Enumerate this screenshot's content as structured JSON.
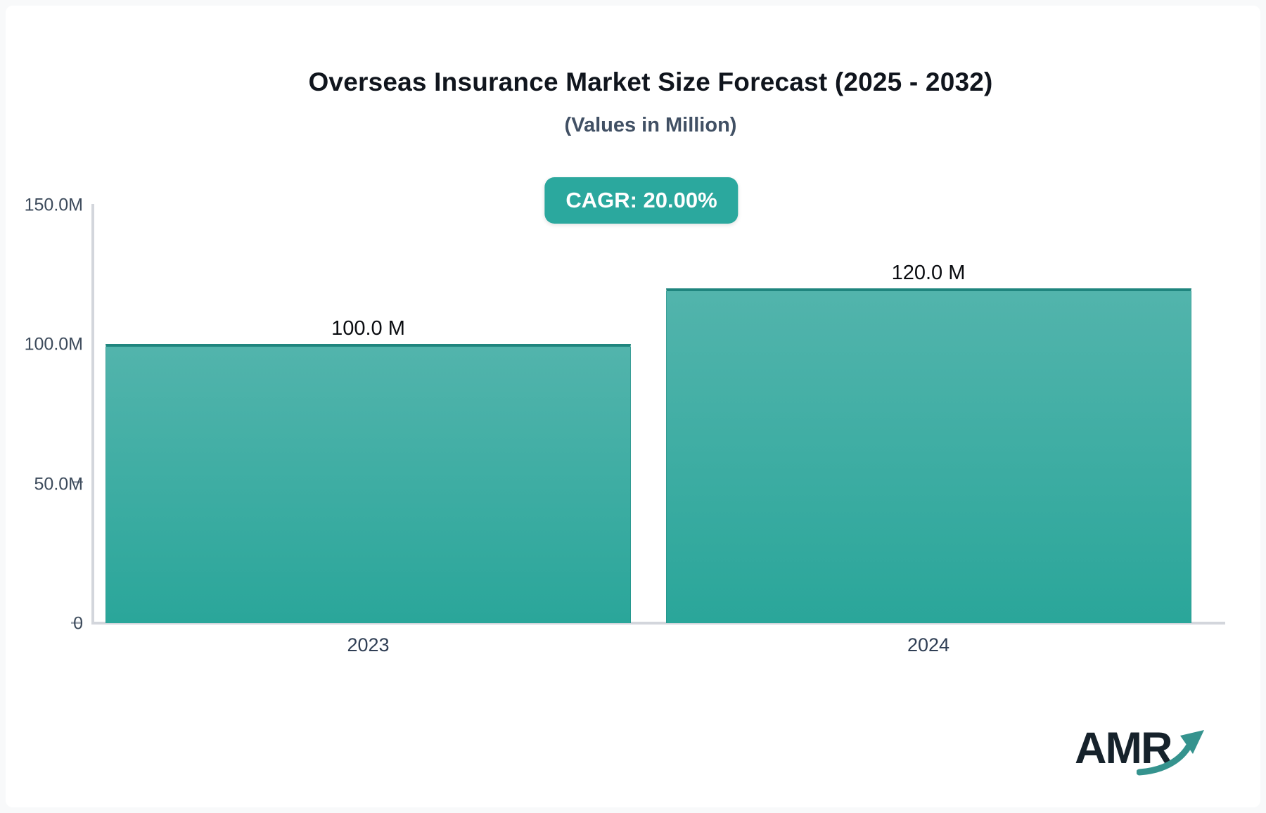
{
  "page": {
    "background": "#F8F9FA",
    "card_background": "#FFFFFF"
  },
  "chart_data": {
    "type": "bar",
    "title": "Overseas Insurance Market Size Forecast (2025 - 2032)",
    "subtitle": "(Values in Million)",
    "cagr_badge": "CAGR: 20.00%",
    "categories": [
      "2023",
      "2024"
    ],
    "values": [
      100.0,
      120.0
    ],
    "value_labels": [
      "100.0 M",
      "120.0 M"
    ],
    "unit": "Million",
    "ylim": [
      0,
      150
    ],
    "y_tick_values": [
      150,
      100,
      50,
      0
    ],
    "y_tick_labels": [
      "150.0M",
      "100.0M",
      "50.0M",
      "0"
    ],
    "grid": false,
    "legend": false,
    "colors": {
      "bar_gradient_top": "#52B4AC",
      "bar_gradient_bottom": "#2AA69A",
      "bar_border": "#1F857E",
      "badge_bg": "#2BA89E",
      "badge_text": "#FFFFFF",
      "axis_line": "#D3D6DC",
      "y_label": "#3C4A5B",
      "x_label": "#2F3E54",
      "value_label": "#0A0C10",
      "title": "#10151D",
      "subtitle": "#415064",
      "logo_text": "#16222B",
      "logo_arrow": "#35938E"
    }
  },
  "logo": {
    "text": "AMR"
  }
}
